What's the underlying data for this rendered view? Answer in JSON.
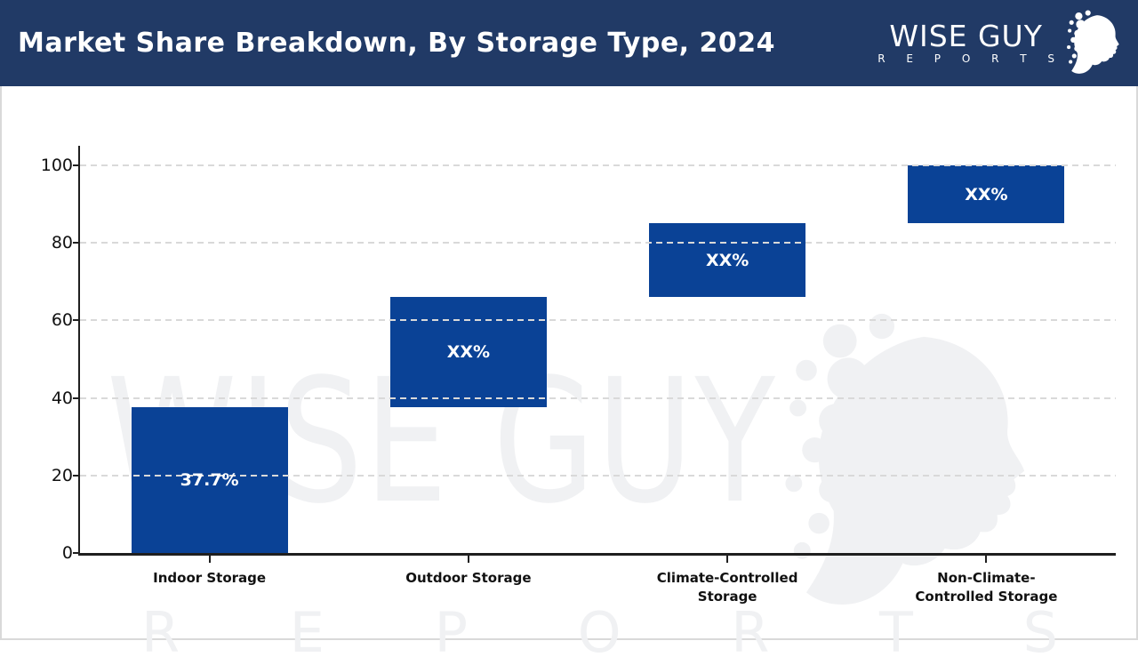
{
  "header": {
    "title": "Market Share Breakdown, By Storage Type, 2024",
    "logo": {
      "line1": "WISE GUY",
      "line2": "R E P O R T S"
    }
  },
  "watermark": {
    "line1": "WISE GUY",
    "line2": "R E P O R T S"
  },
  "colors": {
    "header_bg": "#213a66",
    "bar_fill": "#0a4296",
    "bar_label_text": "#ffffff",
    "gridline": "#d9d9d9",
    "axis": "#1f1f1f",
    "watermark": "#f0f1f3"
  },
  "chart_data": {
    "type": "bar",
    "subtype": "waterfall",
    "title": "Market Share Breakdown, By Storage Type, 2024",
    "xlabel": "",
    "ylabel": "",
    "ylim": [
      0,
      100
    ],
    "grid": true,
    "gridstyle": "dashed",
    "yticks": [
      0,
      20,
      40,
      60,
      80,
      100
    ],
    "categories": [
      "Indoor Storage",
      "Outdoor Storage",
      "Climate-Controlled Storage",
      "Non-Climate-Controlled Storage"
    ],
    "series": [
      {
        "category": "Indoor Storage",
        "category_lines": [
          "Indoor Storage"
        ],
        "start": 0,
        "end": 37.7,
        "label": "37.7%"
      },
      {
        "category": "Outdoor Storage",
        "category_lines": [
          "Outdoor Storage"
        ],
        "start": 37.7,
        "end": 66,
        "label": "XX%"
      },
      {
        "category": "Climate-Controlled Storage",
        "category_lines": [
          "Climate-Controlled",
          "Storage"
        ],
        "start": 66,
        "end": 85,
        "label": "XX%"
      },
      {
        "category": "Non-Climate-Controlled Storage",
        "category_lines": [
          "Non-Climate-",
          "Controlled Storage"
        ],
        "start": 85,
        "end": 100,
        "label": "XX%"
      }
    ]
  }
}
